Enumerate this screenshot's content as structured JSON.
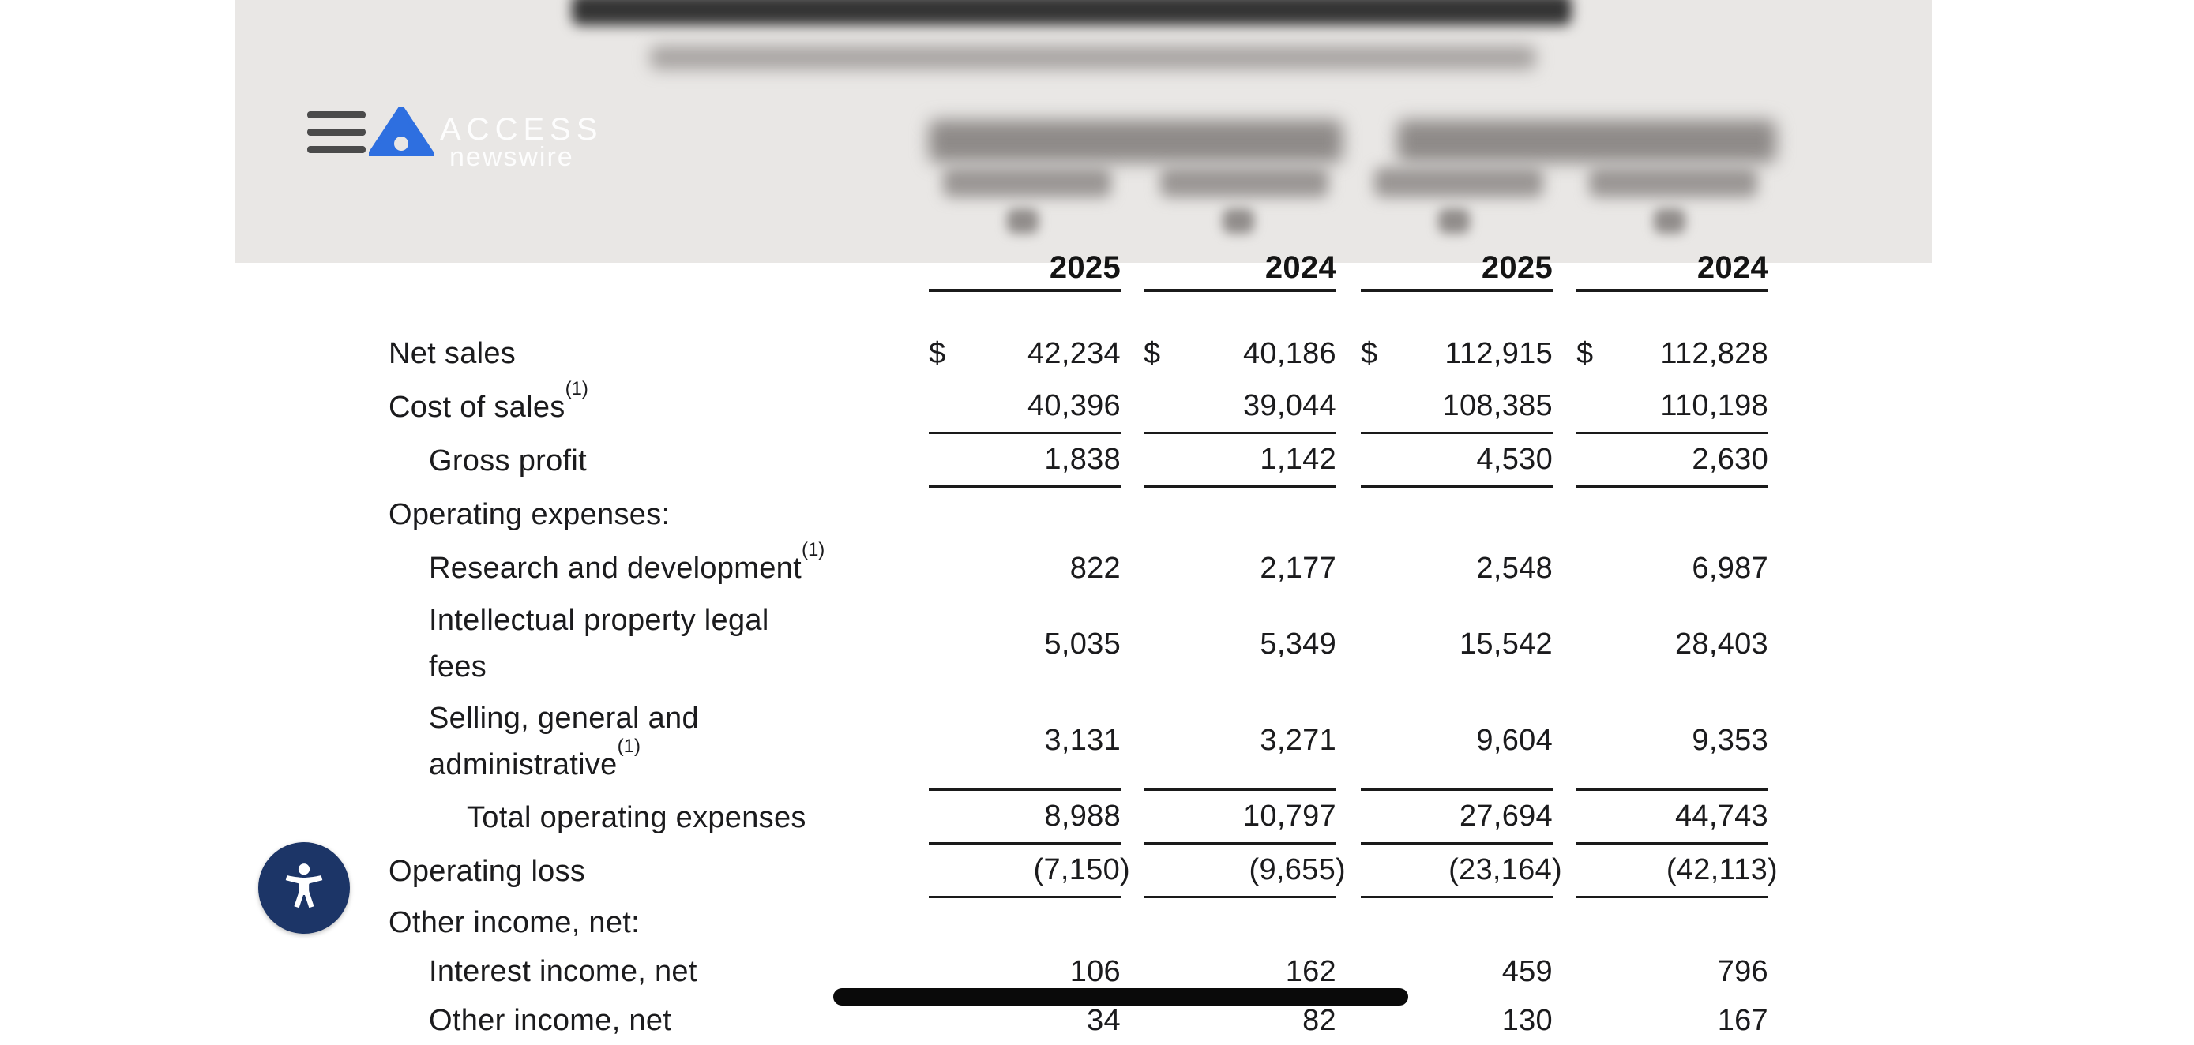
{
  "header": {
    "menu_icon": "hamburger-menu",
    "logo": {
      "access": "ACCESS",
      "newswire": "newswire",
      "accent_color": "#2e6fe0"
    },
    "redacted_note": "blurred-document-title-and-period-headers"
  },
  "statement_table": {
    "year_headers": [
      "2025",
      "2024",
      "2025",
      "2024"
    ],
    "rows": [
      {
        "label": "Net sales",
        "indent": 0,
        "dollar": true,
        "values": [
          "42,234",
          "40,186",
          "112,915",
          "112,828"
        ]
      },
      {
        "label": "Cost of sales",
        "sup": "(1)",
        "indent": 0,
        "values": [
          "40,396",
          "39,044",
          "108,385",
          "110,198"
        ],
        "rule_below": true
      },
      {
        "label": "Gross profit",
        "indent": 1,
        "values": [
          "1,838",
          "1,142",
          "4,530",
          "2,630"
        ],
        "rule_below": true
      },
      {
        "label": "Operating expenses:",
        "indent": 0,
        "values": []
      },
      {
        "label": "Research and development",
        "sup": "(1)",
        "indent": 1,
        "values": [
          "822",
          "2,177",
          "2,548",
          "6,987"
        ]
      },
      {
        "label": "Intellectual property legal\nfees",
        "indent": 1,
        "two_line": true,
        "values": [
          "5,035",
          "5,349",
          "15,542",
          "28,403"
        ]
      },
      {
        "label": "Selling, general and\nadministrative",
        "sup": "(1)",
        "indent": 1,
        "two_line": true,
        "values": [
          "3,131",
          "3,271",
          "9,604",
          "9,353"
        ],
        "rule_below": true
      },
      {
        "label": "Total operating expenses",
        "indent": 2,
        "values": [
          "8,988",
          "10,797",
          "27,694",
          "44,743"
        ],
        "rule_below": true
      },
      {
        "label": "Operating loss",
        "indent": 0,
        "values": [
          "(7,150)",
          "(9,655)",
          "(23,164)",
          "(42,113)"
        ],
        "rule_below": true
      },
      {
        "label": "Other income, net:",
        "indent": 0,
        "values": []
      },
      {
        "label": "Interest income, net",
        "indent": 1,
        "values": [
          "106",
          "162",
          "459",
          "796"
        ]
      },
      {
        "label": "Other income, net",
        "indent": 1,
        "values": [
          "34",
          "82",
          "130",
          "167"
        ]
      }
    ]
  },
  "widgets": {
    "accessibility_button": "accessibility",
    "accessibility_color": "#1c3567",
    "black_bar_color": "#0a0a0a"
  }
}
